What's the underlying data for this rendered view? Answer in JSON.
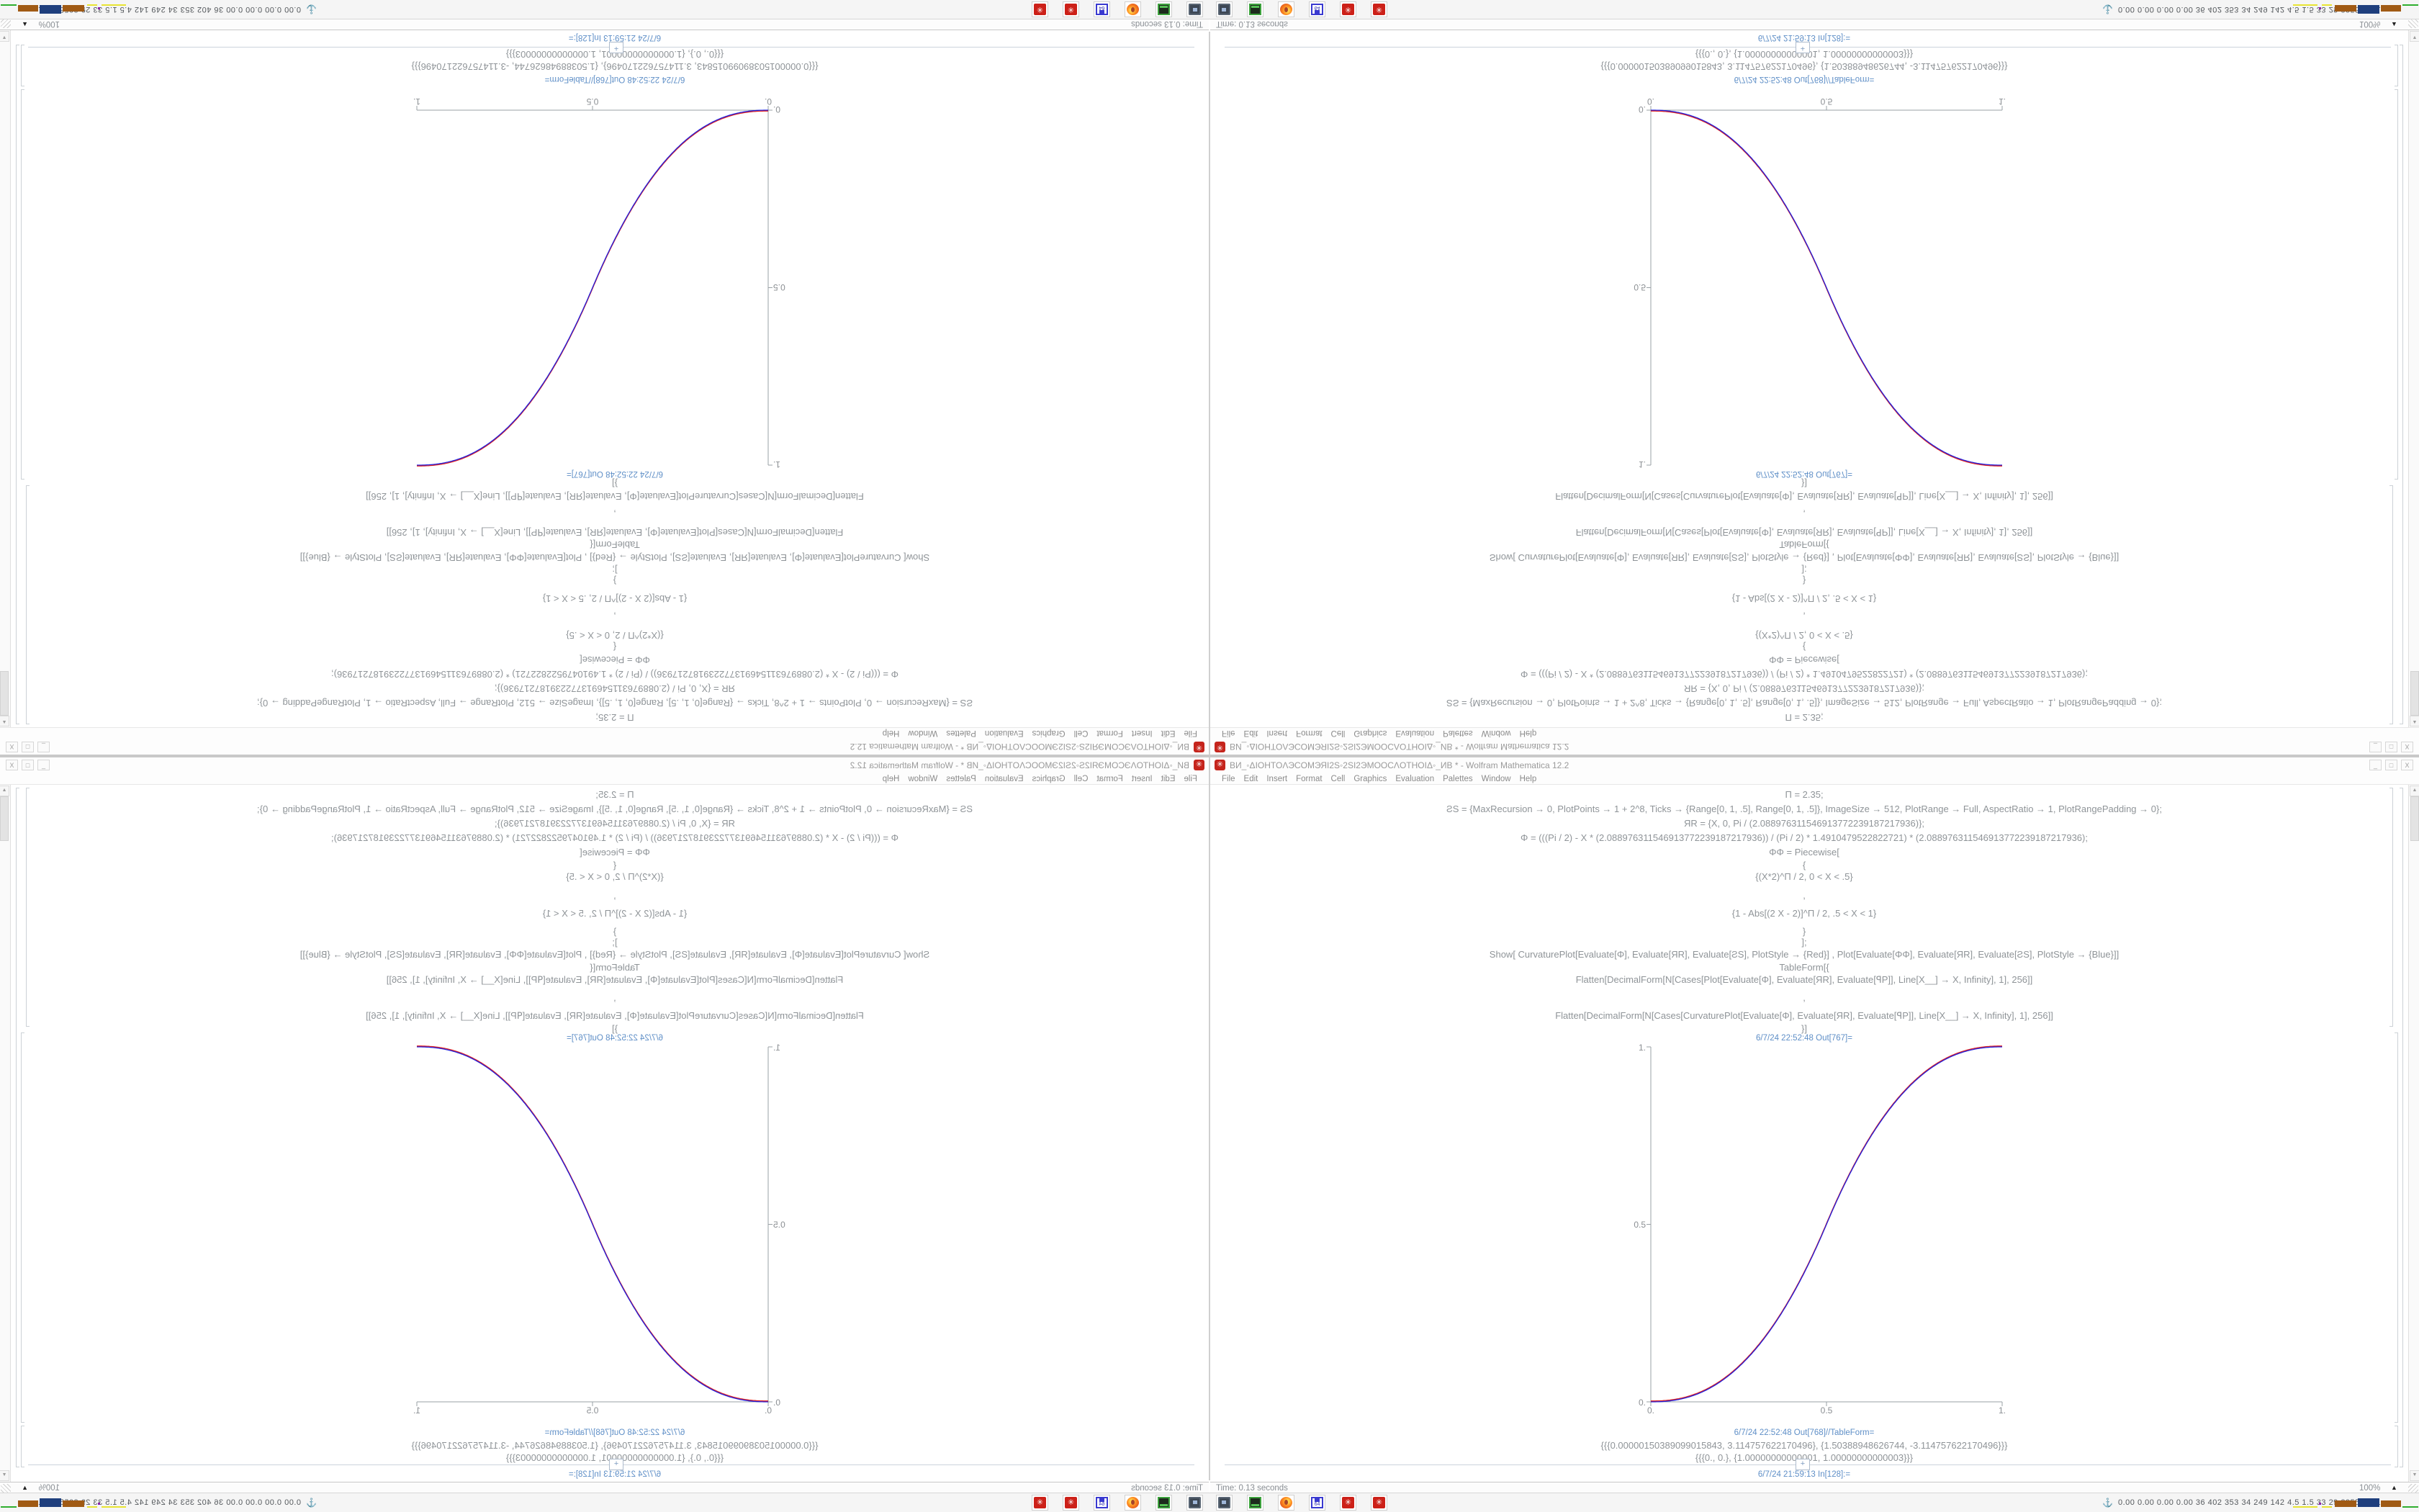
{
  "window": {
    "title": "BИ_◦ΔIOHTOΛЭCOMЭЯI2S◦2SI2ЭMOOCΛOTHOIΔ◦_ИB * - Wolfram Mathematica 12.2",
    "app": "Wolfram Mathematica 12.2",
    "controls": {
      "minimize": "_",
      "maximize": "□",
      "close": "X"
    },
    "menu": [
      "File",
      "Edit",
      "Insert",
      "Format",
      "Cell",
      "Graphics",
      "Evaluation",
      "Palettes",
      "Window",
      "Help"
    ],
    "status": {
      "left": "Time: 0.13 seconds",
      "zoom": "100%",
      "zoom_arrow": "▲"
    },
    "scrollbar": {
      "up": "▲",
      "down": "▼"
    }
  },
  "notebook": {
    "code_lines": [
      "Π = 2.35;",
      "ƧS = {MaxRecursion → 0, PlotPoints → 1 + 2^8, Ticks → {Range[0, 1, .5], Range[0, 1, .5]}, ImageSize → 512, PlotRange → Full, AspectRatio → 1, PlotRangePadding → 0};",
      "ЯR = {X, 0, Pi / (2.088976311546913772239187217936)};",
      "Φ = (((Pi / 2) - X * (2.088976311546913772239187217936)) / (Pi / 2) * 1.4910479522822721) * (2.088976311546913772239187217936);",
      "ΦΦ = Piecewise[",
      "{",
      "{(X*2)^Π / 2, 0 < X < .5}",
      ",",
      "{1 - Abs[(2 X - 2)]^Π / 2, .5 < X < 1}",
      "}",
      "];",
      "Show[  CurvaturePlot[Evaluate[Φ], Evaluate[ЯR], Evaluate[ƧS], PlotStyle → {Red}]  ,  Plot[Evaluate[ΦΦ], Evaluate[ЯR], Evaluate[ƧS],  PlotStyle → {Blue}]]",
      "TableForm[{",
      "Flatten[DecimalForm[N[Cases[Plot[Evaluate[Φ], Evaluate[ЯR], Evaluate[ꟼP]], Line[X__] → X, Infinity], 1], 256]]",
      ",",
      "Flatten[DecimalForm[N[Cases[CurvaturePlot[Evaluate[Φ], Evaluate[ЯR], Evaluate[ꟼP]], Line[X__] → X, Infinity], 1], 256]]",
      "}]"
    ],
    "out_plot_label": "6/7/24 22:52:48 Out[767]=",
    "out_table_label": "6/7/24 22:52:48 Out[768]//TableForm=",
    "table_rows": [
      "{{{0.00000150389099015843, 3.114757622170496}, {1.50388948626744, -3.114757622170496}}}",
      "{{{0., 0.}, {1.00000000000001, 1.00000000000003}}}"
    ],
    "insert_plus": "+",
    "next_cell_label": "6/7/24 21:59:13 In[128]:="
  },
  "chart_data": {
    "type": "line",
    "title": "6/7/24 22:52:48 Out[767]=",
    "xlabel": "",
    "ylabel": "",
    "xlim": [
      0,
      1
    ],
    "ylim": [
      0,
      1
    ],
    "x_ticks": [
      "0.",
      "0.5",
      "1."
    ],
    "y_ticks_top_to_bottom": [
      "1.",
      "0.5",
      "0."
    ],
    "grid": false,
    "legend": "none",
    "exponent": 2.35,
    "series": [
      {
        "name": "CurvaturePlot[Φ] (Red)",
        "color": "#e02020",
        "formula": "y=(2x)^2.35/2 for 0<x<0.5 ; y=1-|2x-2|^2.35/2 for 0.5<x<1"
      },
      {
        "name": "Plot[ΦΦ] (Blue)",
        "color": "#2020dd",
        "formula": "y=(2x)^2.35/2 for 0<x<0.5 ; y=1-|2x-2|^2.35/2 for 0.5<x<1"
      }
    ],
    "sample_points": [
      [
        0,
        0
      ],
      [
        0.25,
        0.098
      ],
      [
        0.5,
        0.5
      ],
      [
        0.75,
        0.902
      ],
      [
        1,
        1
      ]
    ]
  },
  "taskbar": {
    "launchers": [
      "screenshot-tool",
      "green-terminal",
      "firefox",
      "floppy-64",
      "mathematica-red",
      "mathematica-red-alt"
    ],
    "floppy_label": "64",
    "gear_glyph": "✳",
    "tray_icon": "⚓",
    "tray_text": "0.00 0.00 0.00 0.00  36  402 353  34  249 142  4.5  1.5  33  29  2955 3811",
    "widget_colors": {
      "yellow": "#e8e432",
      "purple": "#8a22aa",
      "brown": "#a05a14",
      "navy": "#1f3f7d",
      "green": "#2fae2f"
    }
  }
}
